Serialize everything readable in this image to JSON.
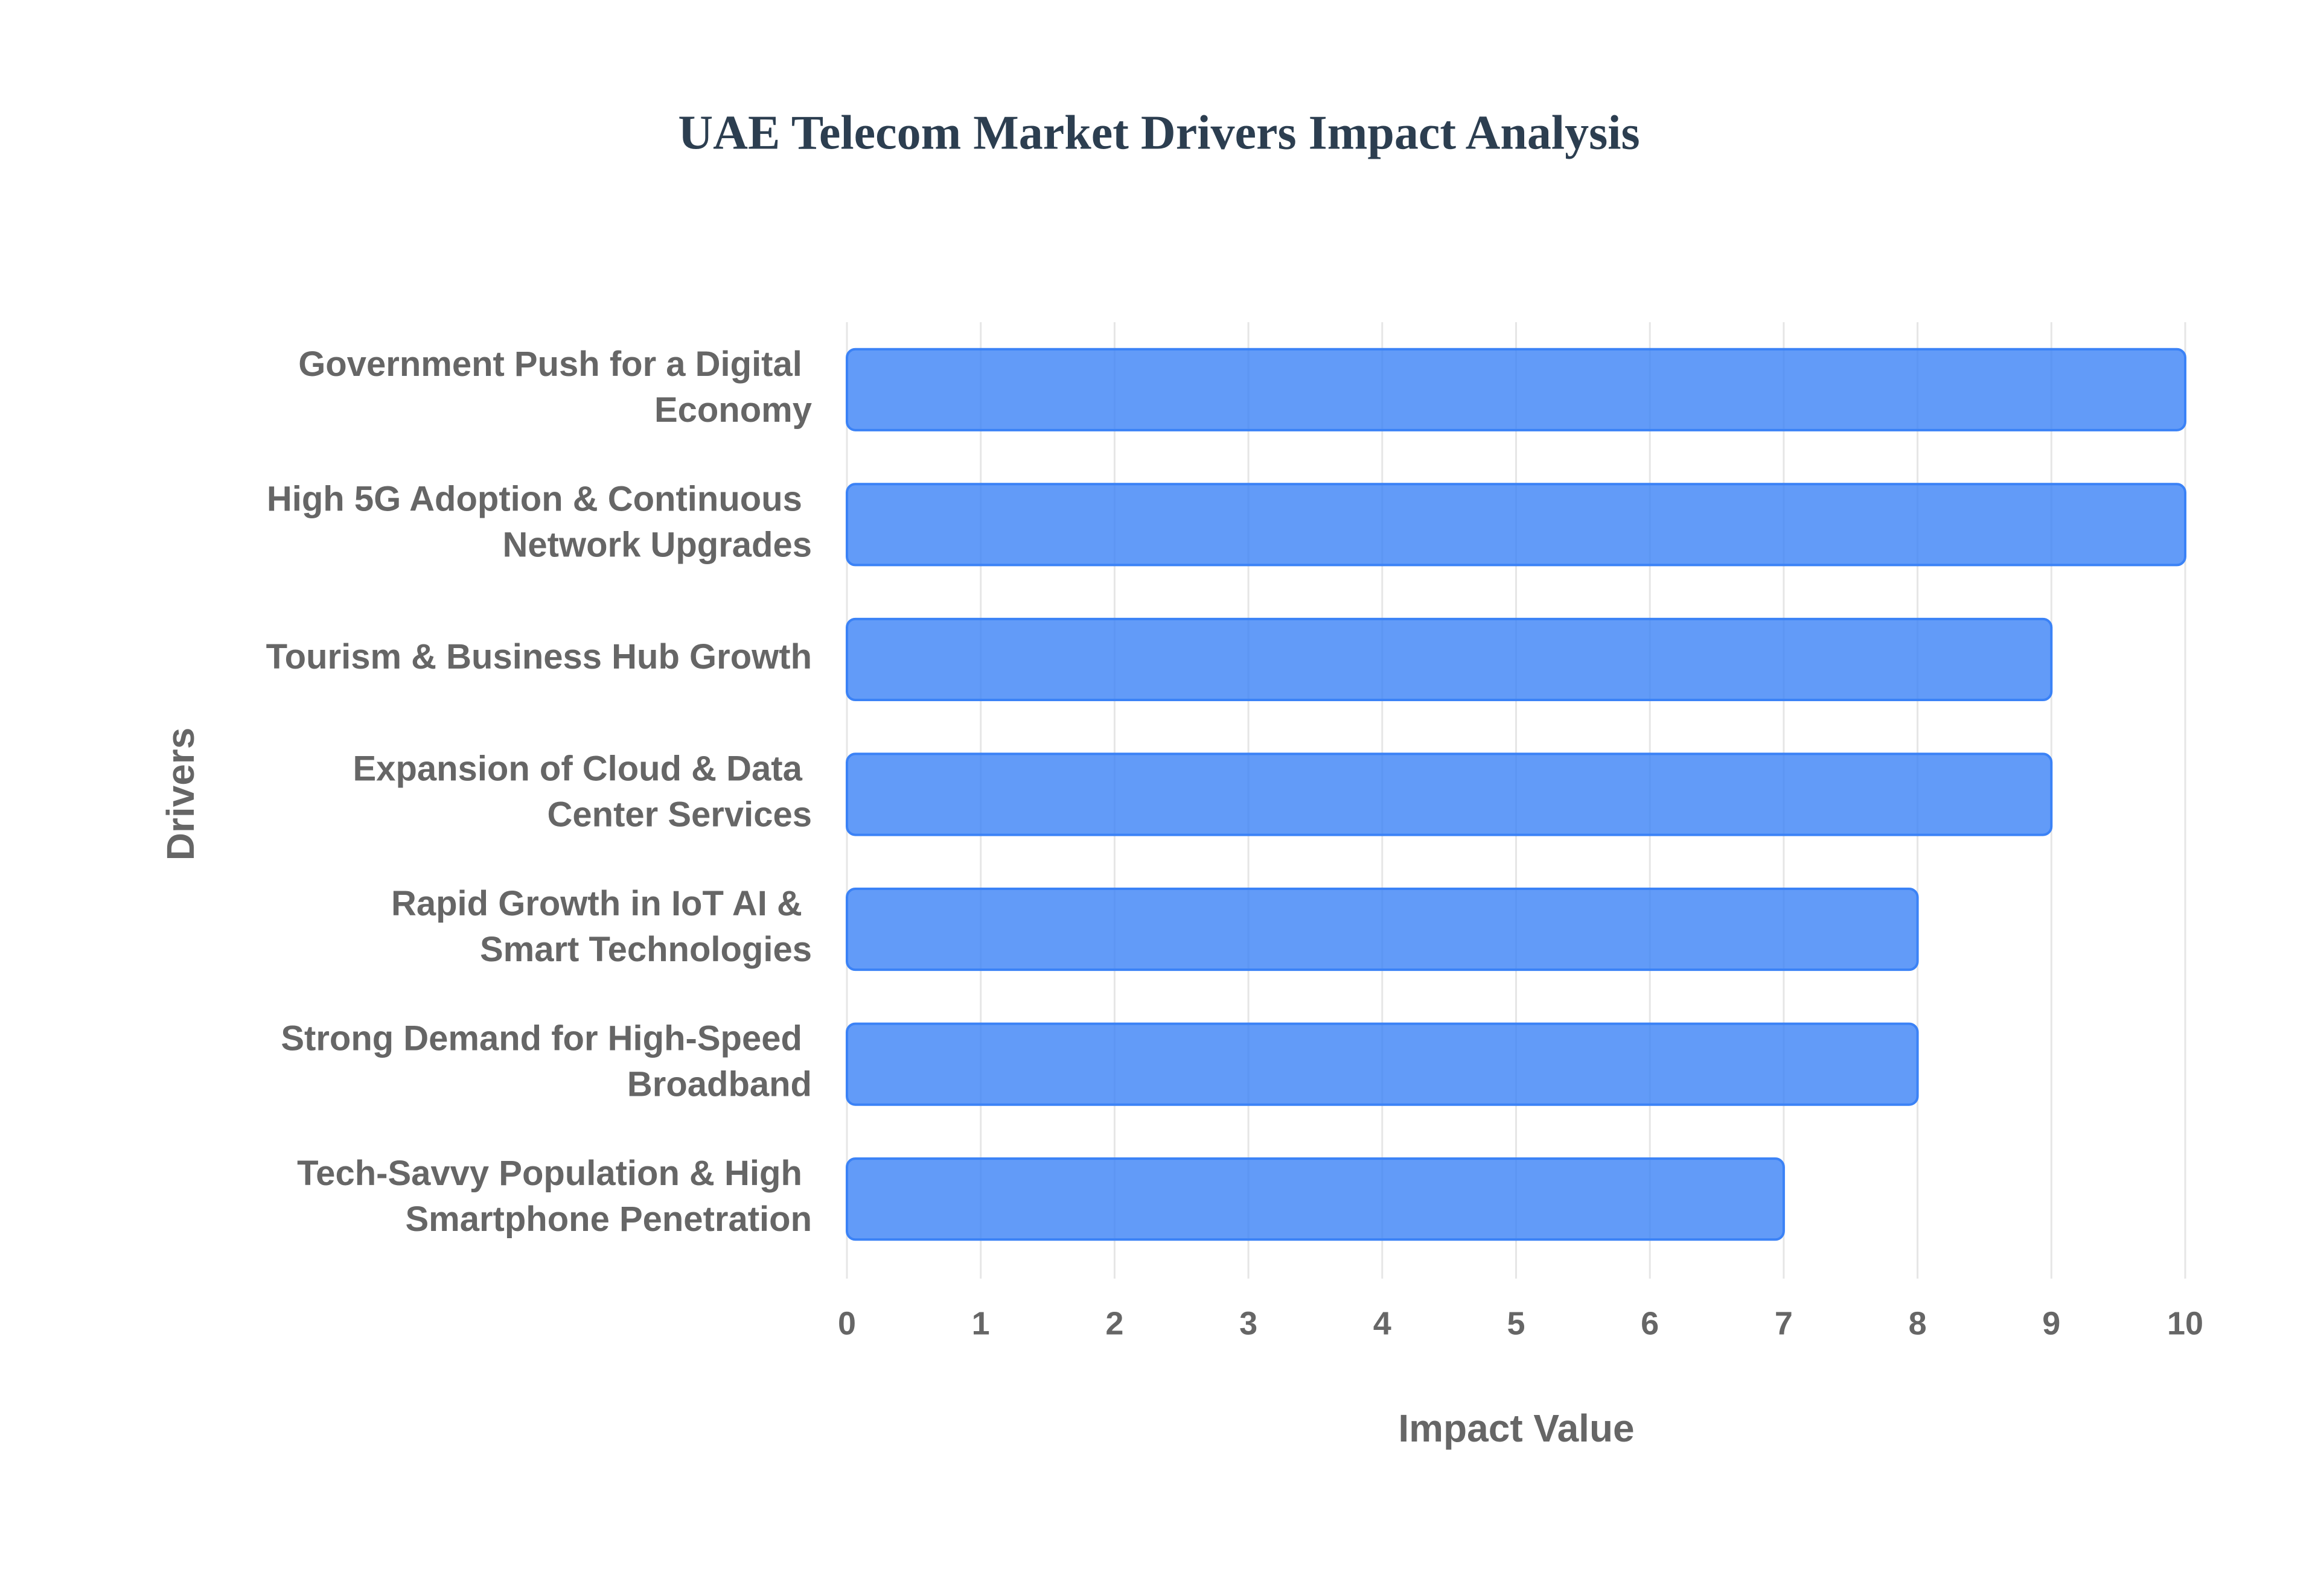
{
  "chart_data": {
    "type": "bar",
    "orientation": "horizontal",
    "title": "UAE Telecom Market Drivers Impact Analysis",
    "x_label": "Impact Value",
    "y_label": "Drivers",
    "categories": [
      "Government Push for a Digital Economy",
      "High 5G Adoption & Continuous Network Upgrades",
      "Tourism & Business Hub Growth",
      "Expansion of Cloud & Data Center Services",
      "Rapid Growth in IoT  AI & Smart Technologies",
      "Strong Demand for High-Speed Broadband",
      "Tech-Savvy Population & High Smartphone Penetration"
    ],
    "values": [
      10,
      10,
      9,
      9,
      8,
      8,
      7
    ],
    "color": "#3b82f6",
    "xlim": [
      0,
      10
    ],
    "xticks": [
      0,
      1,
      2,
      3,
      4,
      5,
      6,
      7,
      8,
      9,
      10
    ],
    "grid": true
  }
}
